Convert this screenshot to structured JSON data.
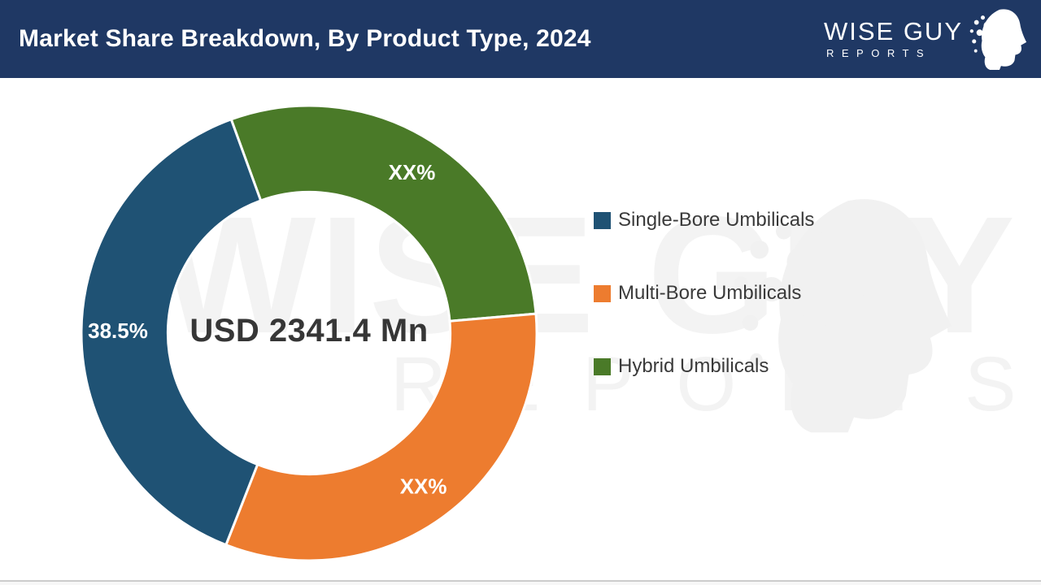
{
  "header": {
    "title": "Market Share Breakdown, By Product Type, 2024",
    "background_color": "#1f3864",
    "logo": {
      "line1": "WISE GUY",
      "line2": "REPORTS"
    }
  },
  "chart_data": {
    "type": "pie",
    "variant": "donut",
    "title": "Market Share Breakdown, By Product Type, 2024",
    "center_label": "USD 2341.4 Mn",
    "start_angle_deg": 110,
    "direction": "clockwise",
    "hole_ratio": 0.62,
    "slices": [
      {
        "name": "Hybrid Umbilicals",
        "display_label": "XX%",
        "value_pct": 29.2,
        "color": "#4a7a28"
      },
      {
        "name": "Multi-Bore Umbilicals",
        "display_label": "XX%",
        "value_pct": 32.3,
        "color": "#ed7c2f"
      },
      {
        "name": "Single-Bore Umbilicals",
        "display_label": "38.5%",
        "value_pct": 38.5,
        "color": "#1f5274"
      }
    ],
    "legend_position": "right",
    "legend": [
      {
        "label": "Single-Bore Umbilicals",
        "color": "#1f5274"
      },
      {
        "label": "Multi-Bore Umbilicals",
        "color": "#ed7c2f"
      },
      {
        "label": "Hybrid Umbilicals",
        "color": "#4a7a28"
      }
    ]
  },
  "watermark": {
    "line1": "WISE GUY",
    "line2": "REPORTS"
  }
}
